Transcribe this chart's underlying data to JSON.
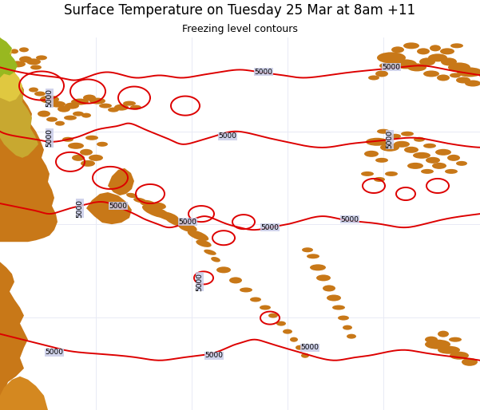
{
  "title": "Surface Temperature on Tuesday 25 Mar at 8am +11",
  "subtitle": "Freezing level contours",
  "title_fontsize": 12,
  "subtitle_fontsize": 9,
  "fig_width": 6.01,
  "fig_height": 5.14,
  "dpi": 100,
  "map_bg_color": "#c8cce8",
  "title_bg": "#ffffff",
  "contour_color": "#dd0000",
  "contour_lw": 1.4,
  "grid_color": "#e8eaf5",
  "land_color_main": "#c87818",
  "land_color_mid": "#d48820",
  "land_color_high": "#c8a830",
  "land_color_green": "#98b820",
  "land_color_yellow": "#e0c840"
}
